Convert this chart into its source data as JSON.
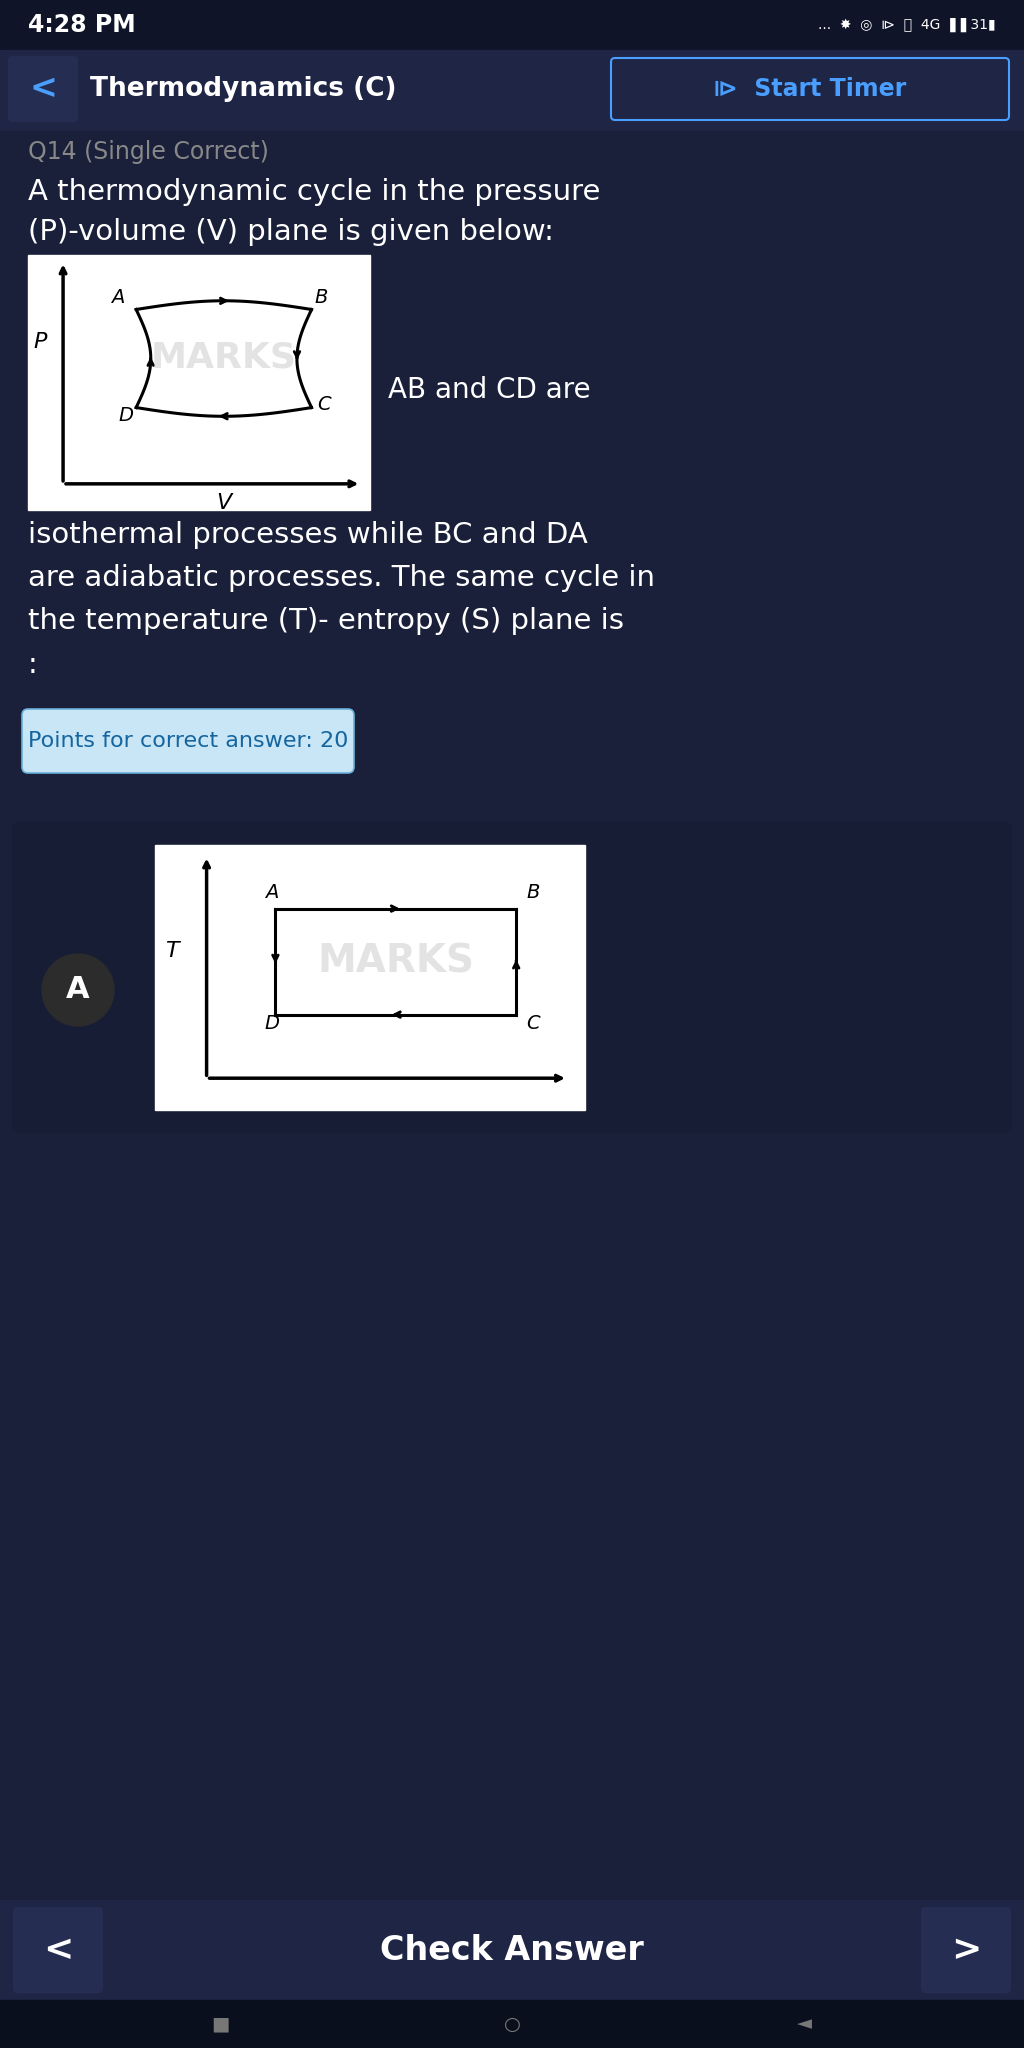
{
  "bg_color": "#1a1f3a",
  "status_bar_bg": "#0f1428",
  "status_bar_time": "4:28 PM",
  "nav_bg": "#1e2545",
  "nav_text": "Thermodynamics (C)",
  "timer_text": "⧐  Start Timer",
  "timer_border": "#4a9eff",
  "timer_color": "#4a9eff",
  "q_label": "Q14 (Single Correct)",
  "q_label_color": "#888888",
  "question_line1": "A thermodynamic cycle in the pressure",
  "question_line2": "(P)-volume (V) plane is given below:",
  "text_color": "#ffffff",
  "ab_cd_text": "AB and CD are",
  "iso_line1": "isothermal processes while BC and DA",
  "iso_line2": "are adiabatic processes. The same cycle in",
  "iso_line3": "the temperature (T)- entropy (S) plane is",
  "colon": ":",
  "points_text": "Points for correct answer: 20",
  "points_bg": "#c8e6f5",
  "points_border": "#6ab0d8",
  "points_text_color": "#1565a0",
  "answer_option": "A",
  "answer_box_bg": "#181d36",
  "check_answer_text": "Check Answer",
  "bottom_bar_bg": "#1e2545",
  "nav_bottom_bg": "#0f1428",
  "white": "#ffffff",
  "black": "#000000",
  "marks_watermark": "MARKS",
  "back_btn_color": "#4a9eff"
}
